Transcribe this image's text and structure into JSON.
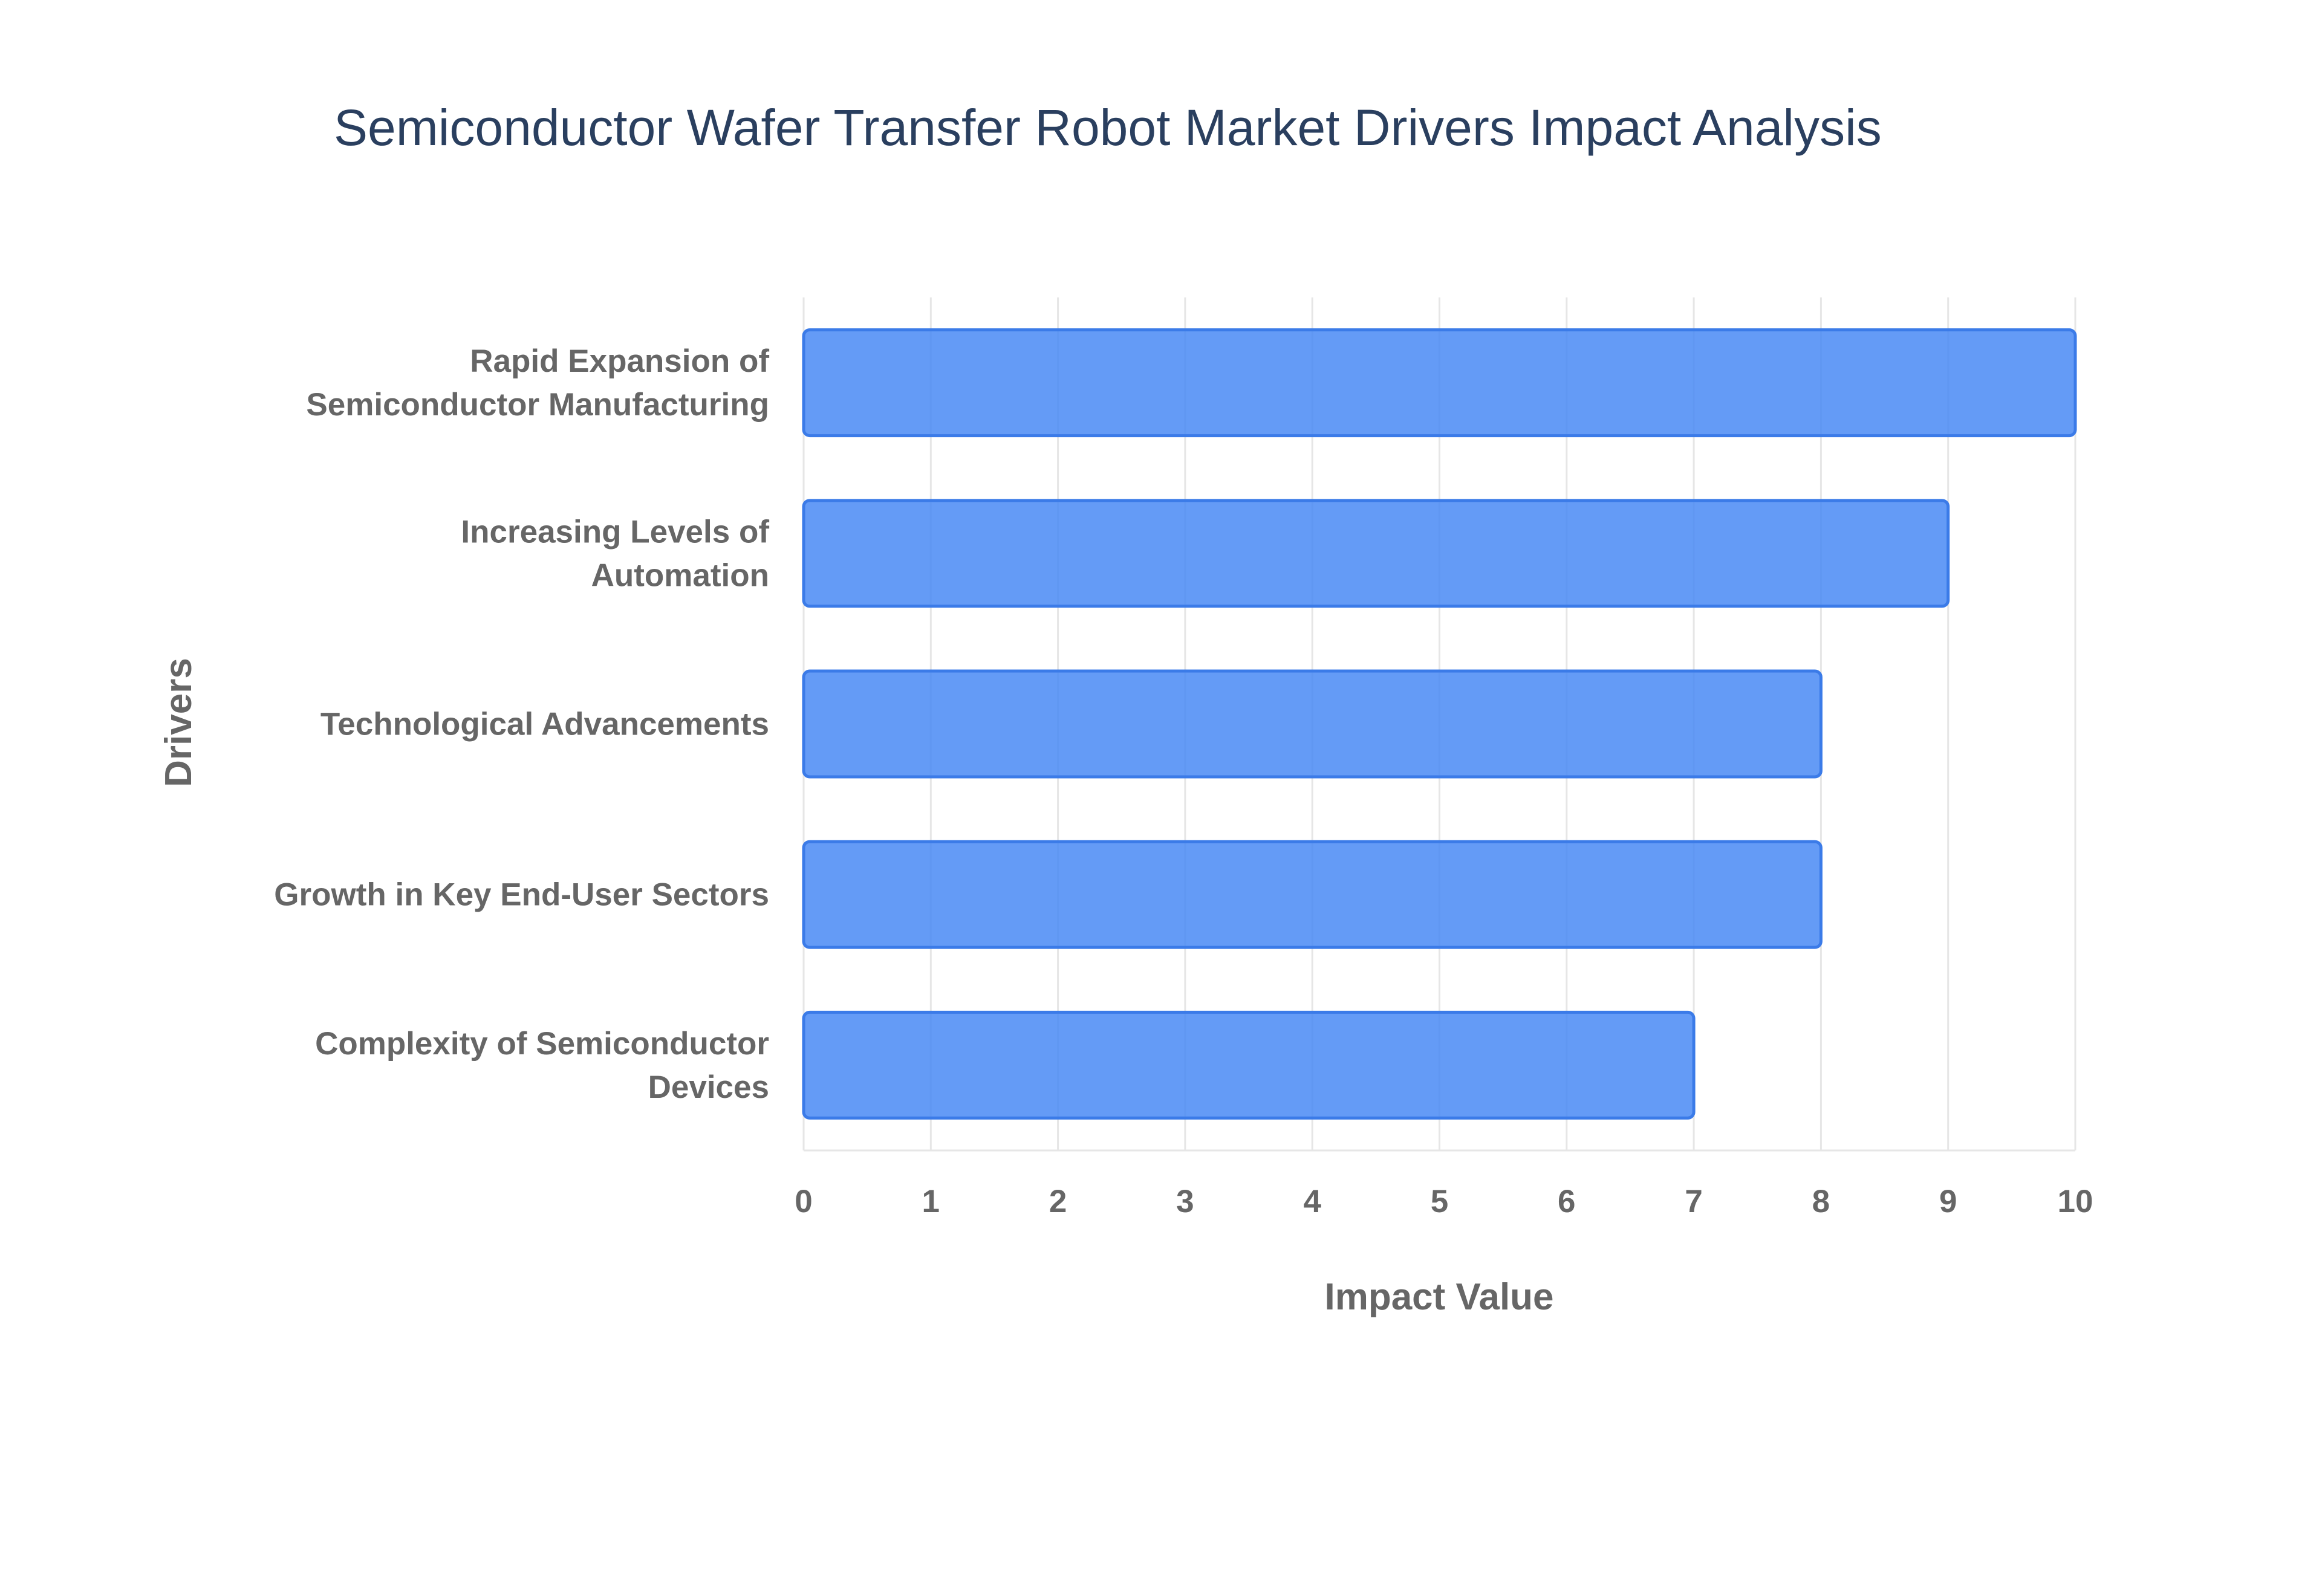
{
  "chart_data": {
    "type": "bar",
    "orientation": "horizontal",
    "title": "Semiconductor Wafer Transfer Robot Market Drivers Impact Analysis",
    "xlabel": "Impact Value",
    "ylabel": "Drivers",
    "xlim": [
      0,
      10
    ],
    "x_ticks": [
      "0",
      "1",
      "2",
      "3",
      "4",
      "5",
      "6",
      "7",
      "8",
      "9",
      "10"
    ],
    "grid": true,
    "bar_color": "#4285f4",
    "categories": [
      [
        "Rapid Expansion of",
        "Semiconductor Manufacturing"
      ],
      [
        "Increasing Levels of",
        "Automation"
      ],
      [
        "Technological Advancements"
      ],
      [
        "Growth in Key End-User Sectors"
      ],
      [
        "Complexity of Semiconductor",
        "Devices"
      ]
    ],
    "values": [
      10,
      9,
      8,
      8,
      7
    ]
  }
}
